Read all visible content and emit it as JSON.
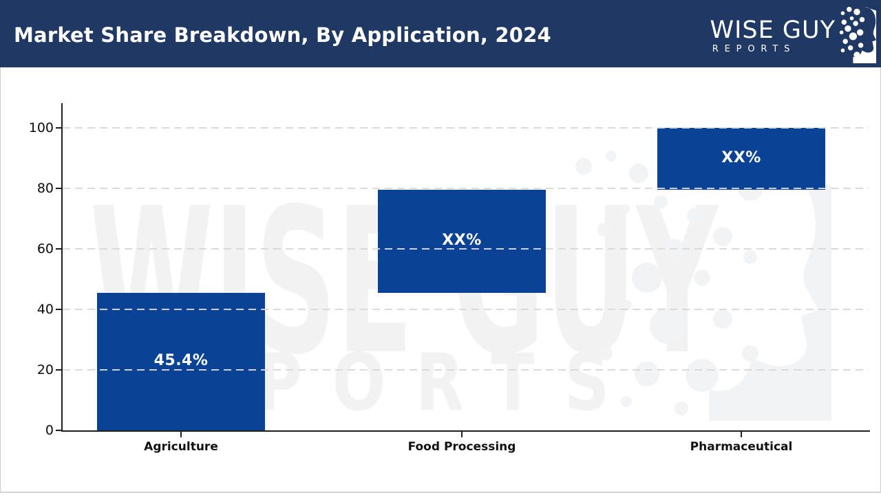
{
  "header": {
    "title": "Market Share Breakdown, By Application, 2024",
    "logo": {
      "line1": "WISE GUY",
      "line2": "REPORTS"
    }
  },
  "watermark": {
    "line1": "WISE GUY",
    "line2": "REPORTS"
  },
  "chart_data": {
    "type": "bar",
    "subtype": "waterfall-segmented",
    "title": "Market Share Breakdown, By Application, 2024",
    "categories": [
      "Agriculture",
      "Food Processing",
      "Pharmaceutical"
    ],
    "segments": [
      {
        "category": "Agriculture",
        "start": 0,
        "end": 45.4,
        "label": "45.4%"
      },
      {
        "category": "Food Processing",
        "start": 45.4,
        "end": 79.5,
        "label": "XX%"
      },
      {
        "category": "Pharmaceutical",
        "start": 79.5,
        "end": 100,
        "label": "XX%"
      }
    ],
    "segment_heights": [
      45.4,
      34.1,
      20.5
    ],
    "ylim": [
      0,
      100
    ],
    "yticks": [
      0,
      20,
      40,
      60,
      80,
      100
    ],
    "grid": "horizontal-dashed",
    "legend": "none",
    "bar_color": "#0a4296",
    "label_color": "#ffffff"
  },
  "colors": {
    "header_bg": "#203864",
    "bar": "#0a4296",
    "grid_line": "#d9d9d9",
    "axis": "#1f1f1f",
    "watermark": "#f2f2f2",
    "frame_border": "#cccccc"
  }
}
